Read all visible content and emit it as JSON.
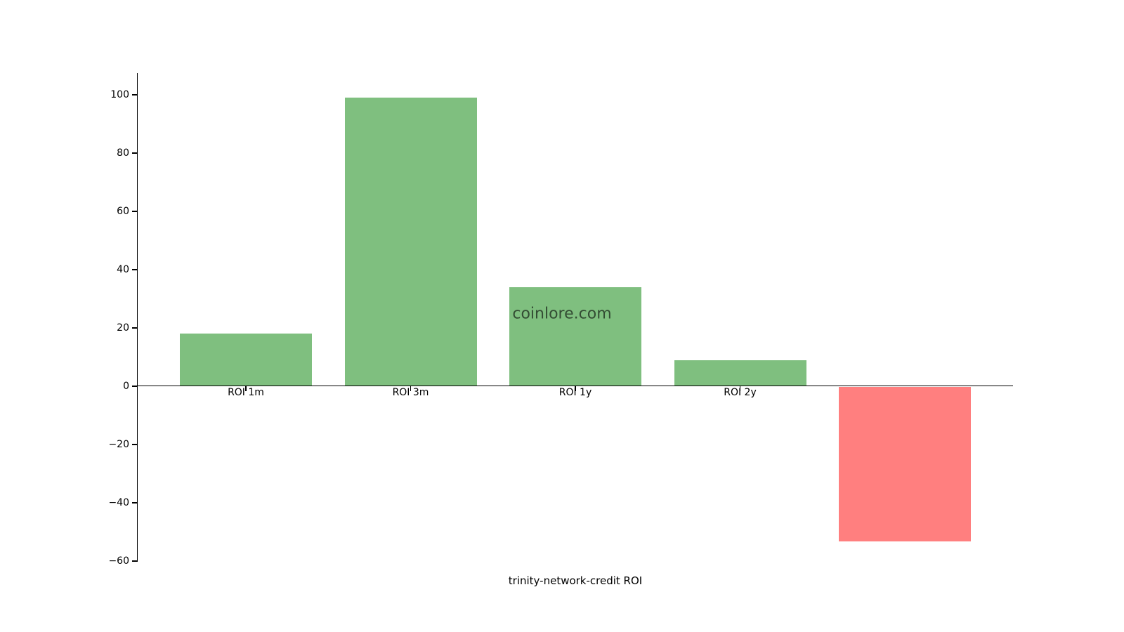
{
  "chart_data": {
    "type": "bar",
    "categories": [
      "ROI 1m",
      "ROI 3m",
      "ROI 1y",
      "ROI 2y",
      ""
    ],
    "values": [
      18,
      99,
      34,
      9,
      -53
    ],
    "title": "",
    "xlabel": "trinity-network-credit ROI",
    "ylabel": "",
    "ylim": [
      -61,
      107
    ],
    "yticks": [
      100,
      80,
      60,
      40,
      20,
      0,
      -20,
      -40,
      -60
    ],
    "ytick_labels": [
      "100",
      "80",
      "60",
      "40",
      "20",
      "0",
      "−20",
      "−40",
      "−60"
    ],
    "grid": false,
    "legend_position": "none",
    "bar_colors": [
      "#7fbf7f",
      "#7fbf7f",
      "#7fbf7f",
      "#7fbf7f",
      "#ff7f7f"
    ]
  },
  "colors": {
    "positive_bar": "#7fbf7f",
    "negative_bar": "#ff7f7f",
    "axis": "#000000",
    "tick_text": "#000000"
  },
  "watermark": {
    "text": "coinlore.com"
  }
}
